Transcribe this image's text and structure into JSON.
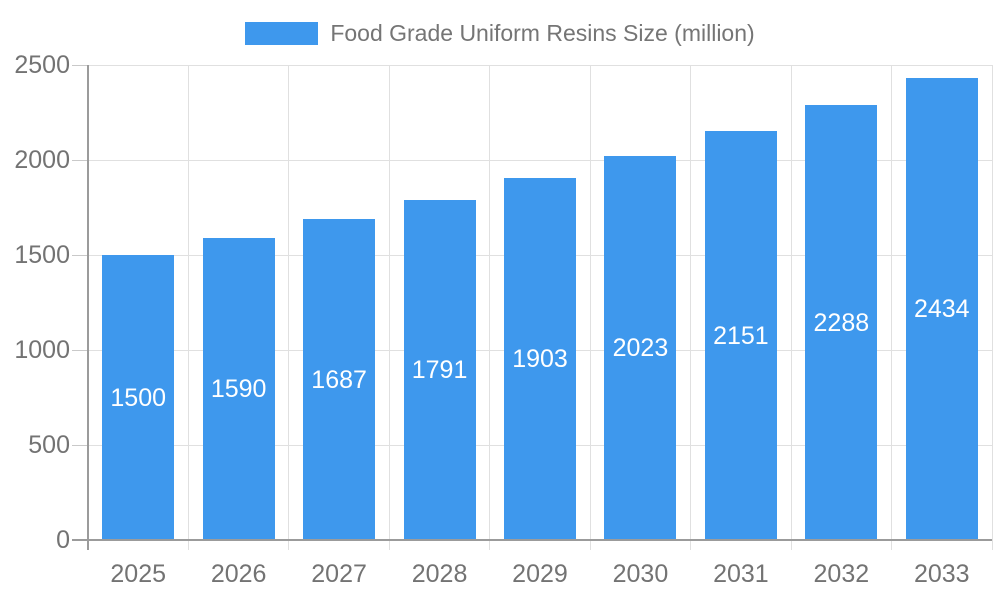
{
  "legend": {
    "label": "Food Grade Uniform Resins Size (million)"
  },
  "colors": {
    "bar": "#3e98ed",
    "grid": "#e0e0e0",
    "axis": "#9b9b9b",
    "y_tick_mark": "#c9c9c9",
    "tick_label": "#737373",
    "value_label": "#ffffff",
    "legend_text": "#757575"
  },
  "chart_data": {
    "type": "bar",
    "title": "Food Grade Uniform Resins Size (million)",
    "categories": [
      "2025",
      "2026",
      "2027",
      "2028",
      "2029",
      "2030",
      "2031",
      "2032",
      "2033"
    ],
    "values": [
      1500,
      1590,
      1687,
      1791,
      1903,
      2023,
      2151,
      2288,
      2434
    ],
    "xlabel": "",
    "ylabel": "",
    "ylim": [
      0,
      2500
    ],
    "yticks": [
      0,
      500,
      1000,
      1500,
      2000,
      2500
    ],
    "grid": true,
    "legend_position": "top",
    "value_label_position": "inside-center"
  }
}
